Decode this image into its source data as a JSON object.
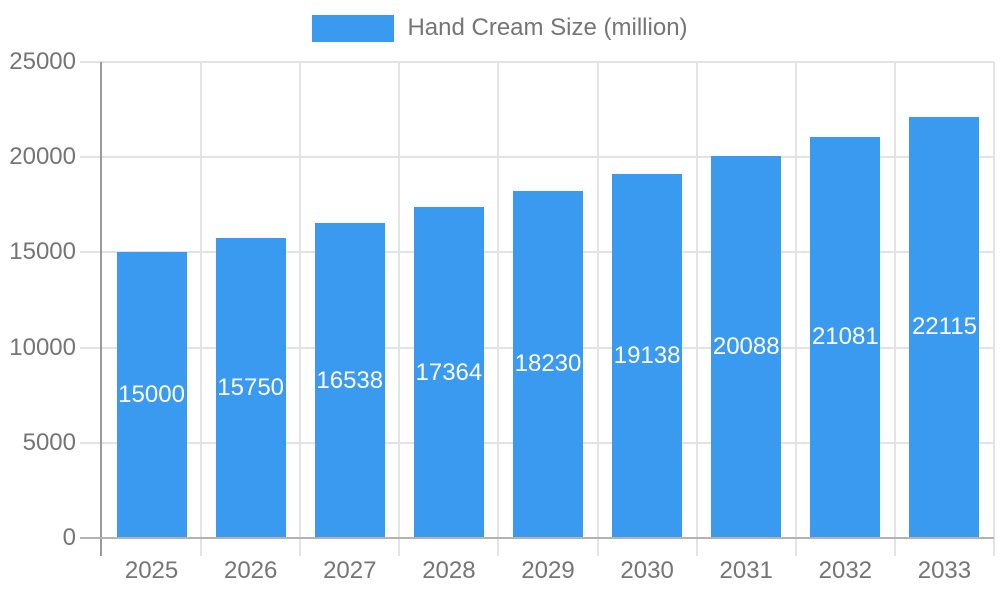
{
  "legend": {
    "label": "Hand Cream Size (million)"
  },
  "colors": {
    "background": "#ffffff",
    "bar": "#3a9af0",
    "axis_y": "#9a9a9a",
    "axis_x": "#b3b3b3",
    "grid": "#e3e3e3",
    "tick_text": "#757575",
    "legend_text": "#757575",
    "value_text": "#ffffff"
  },
  "chart_data": {
    "type": "bar",
    "title": "Hand Cream Size (million)",
    "categories": [
      "2025",
      "2026",
      "2027",
      "2028",
      "2029",
      "2030",
      "2031",
      "2032",
      "2033"
    ],
    "series": [
      {
        "name": "Hand Cream Size (million)",
        "values": [
          15000,
          15750,
          16538,
          17364,
          18230,
          19138,
          20088,
          21081,
          22115
        ]
      }
    ],
    "xlabel": "",
    "ylabel": "",
    "ylim": [
      0,
      25000
    ],
    "yticks": [
      0,
      5000,
      10000,
      15000,
      20000,
      25000
    ],
    "grid": true,
    "legend_position": "top",
    "value_labels": "inside-middle"
  }
}
